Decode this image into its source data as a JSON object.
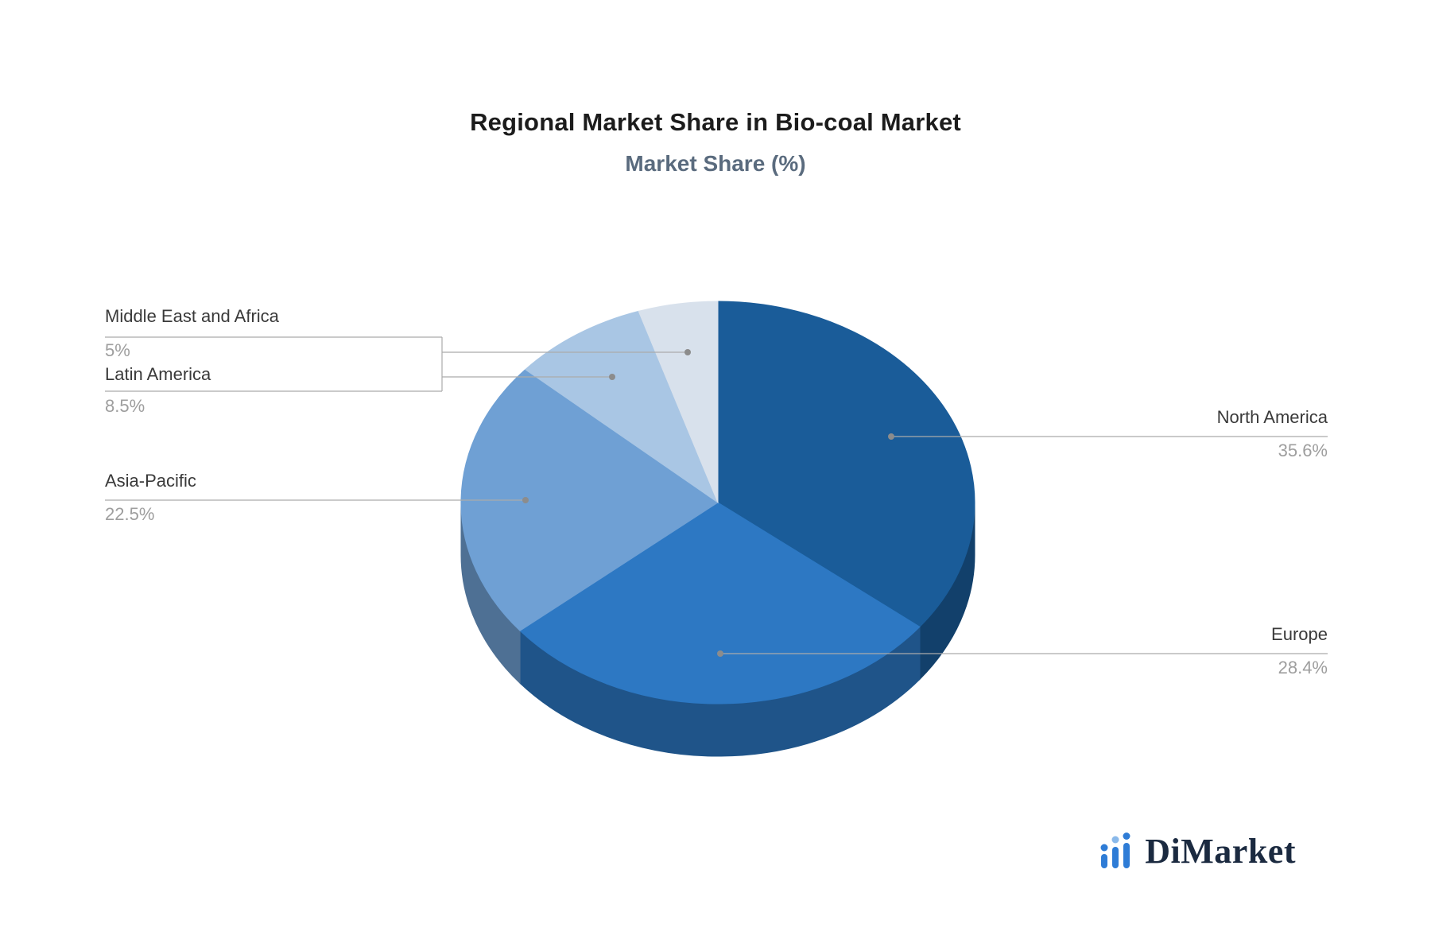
{
  "chart_data": {
    "type": "pie",
    "style": "3d",
    "title": "Regional Market Share in Bio-coal Market",
    "subtitle": "Market Share (%)",
    "unit": "%",
    "start_angle_deg": -90,
    "direction": "clockwise",
    "legend": "none",
    "labels_layout": "callout-leader-lines",
    "slices": [
      {
        "label": "North America",
        "value": 35.6,
        "pct_label": "35.6%",
        "color": "#1a5c99"
      },
      {
        "label": "Europe",
        "value": 28.4,
        "pct_label": "28.4%",
        "color": "#2d78c3"
      },
      {
        "label": "Asia-Pacific",
        "value": 22.5,
        "pct_label": "22.5%",
        "color": "#6fa0d4"
      },
      {
        "label": "Latin America",
        "value": 8.5,
        "pct_label": "8.5%",
        "color": "#a9c6e4"
      },
      {
        "label": "Middle East and Africa",
        "value": 5,
        "pct_label": "5%",
        "color": "#d8e1ec"
      }
    ],
    "colors": {
      "title": "#1c1c1c",
      "subtitle": "#5a6b7e",
      "leader_line": "#ababab",
      "percent_text": "#9e9e9e",
      "label_text": "#3a3a3a"
    }
  },
  "logo": {
    "text": "DiMarket",
    "icon": "bar-chart-icon",
    "accent_color": "#2e7cd6",
    "text_color": "#1b2a40"
  }
}
